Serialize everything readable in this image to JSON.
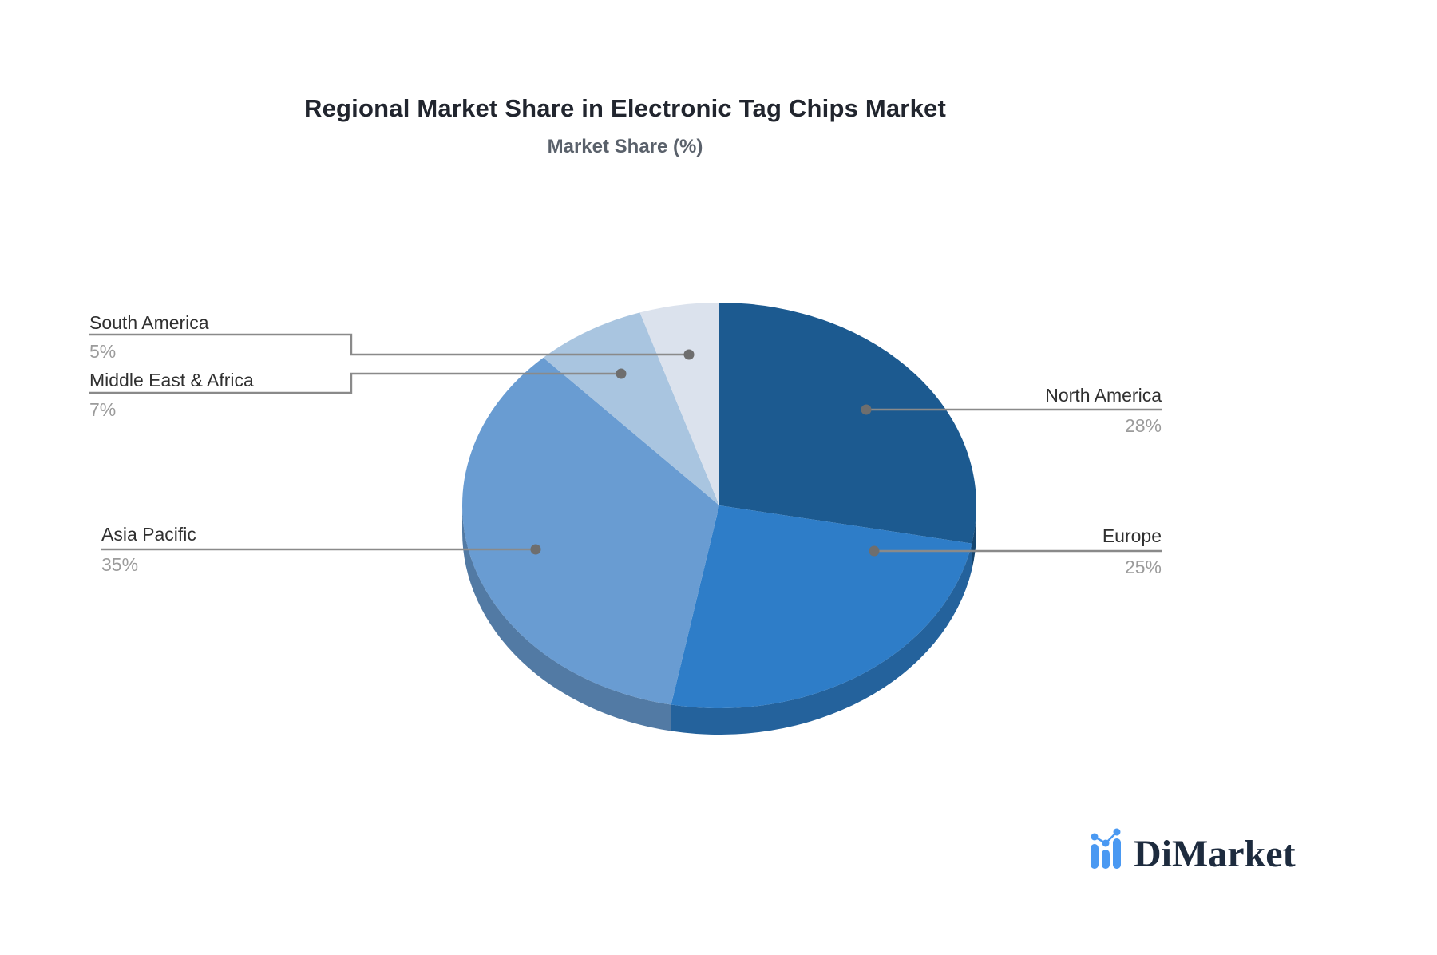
{
  "title": "Regional Market Share in Electronic Tag Chips Market",
  "subtitle": "Market Share (%)",
  "chart_data": {
    "type": "pie",
    "title": "Regional Market Share in Electronic Tag Chips Market",
    "subtitle": "Market Share (%)",
    "unit": "%",
    "labels": [
      "North America",
      "Europe",
      "Asia Pacific",
      "Middle East & Africa",
      "South America"
    ],
    "values": [
      28,
      25,
      35,
      7,
      5
    ],
    "colors": [
      "#1c5a90",
      "#2e7dc8",
      "#699cd2",
      "#a9c5e0",
      "#dbe2ed"
    ],
    "start_angle_deg": 90,
    "direction": "clockwise",
    "style_3d": true,
    "legend": "none",
    "data_labels": "outside-callouts"
  },
  "callouts": [
    {
      "label": "North America",
      "value": "28%",
      "side": "right"
    },
    {
      "label": "Europe",
      "value": "25%",
      "side": "right"
    },
    {
      "label": "Asia Pacific",
      "value": "35%",
      "side": "left"
    },
    {
      "label": "Middle East & Africa",
      "value": "7%",
      "side": "left"
    },
    {
      "label": "South America",
      "value": "5%",
      "side": "left"
    }
  ],
  "callout_style": {
    "line_color": "#8a8a8a",
    "dot_color": "#6e6e6e"
  },
  "logo": {
    "text": "DiMarket",
    "icon": "bar-chart-logo-icon",
    "accent_color": "#4a99f2",
    "text_color": "#1d2b3e"
  }
}
